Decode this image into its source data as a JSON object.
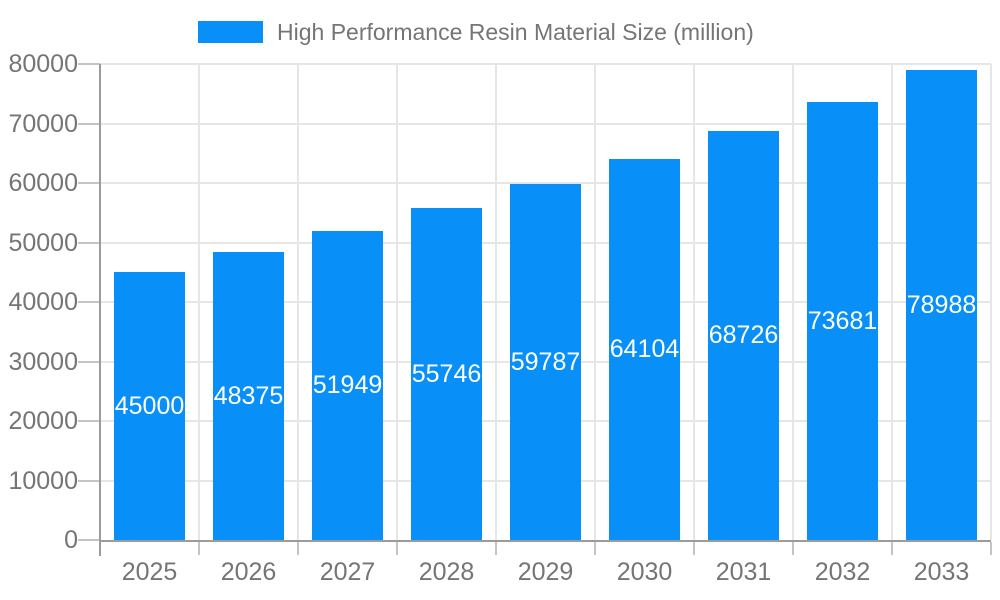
{
  "chart_data": {
    "type": "bar",
    "legend_label": "High Performance Resin Material Size (million)",
    "legend_position": "top",
    "categories": [
      "2025",
      "2026",
      "2027",
      "2028",
      "2029",
      "2030",
      "2031",
      "2032",
      "2033"
    ],
    "values": [
      45000,
      48375,
      51949,
      55746,
      59787,
      64104,
      68726,
      73681,
      78988
    ],
    "ylim": [
      0,
      80000
    ],
    "ytick_step": 10000,
    "ytick_labels": [
      "0",
      "10000",
      "20000",
      "30000",
      "40000",
      "50000",
      "60000",
      "70000",
      "80000"
    ],
    "grid": true,
    "colors": {
      "bar": "#0890f8",
      "value_label": "#ffffff",
      "axis_text": "#757575",
      "grid_line": "#e6e6e6",
      "tick": "#c4c4c4",
      "axis_line": "#9b9b9b",
      "background": "#ffffff"
    }
  }
}
